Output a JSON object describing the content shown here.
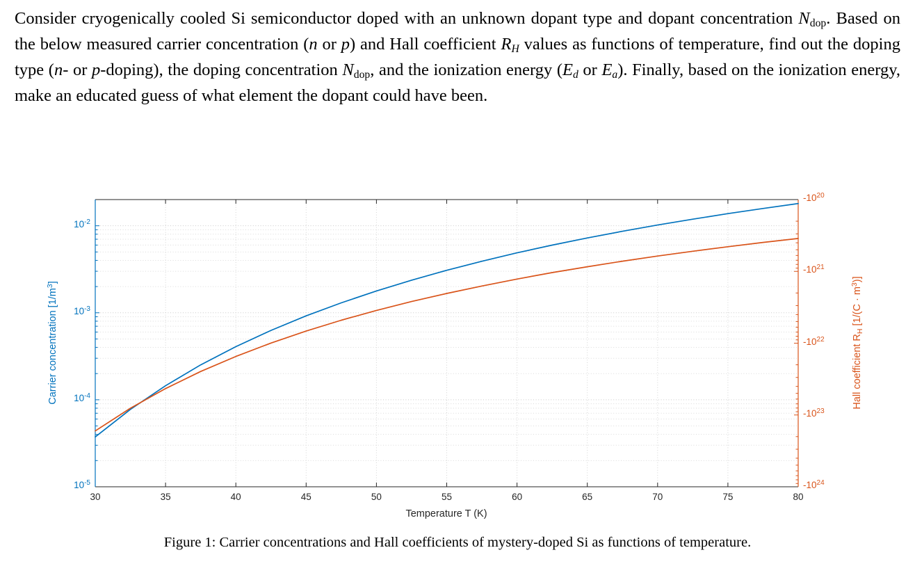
{
  "problem": {
    "segments": [
      {
        "t": "Consider cryogenically cooled Si semiconductor doped with an unknown dopant type and dopant concentration "
      },
      {
        "t": "N",
        "i": true,
        "sub": "dop"
      },
      {
        "t": ". Based on the below measured carrier concentration ("
      },
      {
        "t": "n",
        "i": true
      },
      {
        "t": " or "
      },
      {
        "t": "p",
        "i": true
      },
      {
        "t": ") and Hall coefficient "
      },
      {
        "t": "R",
        "i": true,
        "sub": "H",
        "subi": true
      },
      {
        "t": " values as functions of temperature, find out the doping type ("
      },
      {
        "t": "n",
        "i": true
      },
      {
        "t": "- or "
      },
      {
        "t": "p",
        "i": true
      },
      {
        "t": "-doping), the doping concentration "
      },
      {
        "t": "N",
        "i": true,
        "sub": "dop"
      },
      {
        "t": ", and the ionization energy ("
      },
      {
        "t": "E",
        "i": true,
        "sub": "d",
        "subi": true
      },
      {
        "t": " or "
      },
      {
        "t": "E",
        "i": true,
        "sub": "a",
        "subi": true
      },
      {
        "t": "). Finally, based on the ionization energy, make an educated guess of what element the dopant could have been."
      }
    ]
  },
  "figure": {
    "caption": "Figure 1: Carrier concentrations and Hall coefficients of mystery-doped Si as functions of temperature."
  },
  "chart_data": {
    "type": "line",
    "xlabel": "Temperature T (K)",
    "x_range": [
      30,
      80
    ],
    "x_ticks": [
      30,
      35,
      40,
      45,
      50,
      55,
      60,
      65,
      70,
      75,
      80
    ],
    "grid": "on",
    "left_axis": {
      "label_segments": [
        {
          "t": "Carrier concentration [1/m",
          "sup": "3"
        },
        {
          "t": "]"
        }
      ],
      "scale": "log",
      "range": [
        1e-05,
        0.02
      ],
      "color": "#0072BD",
      "ticks": [
        {
          "base": "10",
          "exp": "-2",
          "value": 0.01
        },
        {
          "base": "10",
          "exp": "-3",
          "value": 0.001
        },
        {
          "base": "10",
          "exp": "-4",
          "value": 0.0001
        },
        {
          "base": "10",
          "exp": "-5",
          "value": 1e-05
        }
      ]
    },
    "right_axis": {
      "label_segments": [
        {
          "t": "Hall coefficient R",
          "sub": "H"
        },
        {
          "t": " [1/(C · m",
          "sup": "3"
        },
        {
          "t": ")]"
        }
      ],
      "scale": "log-negative",
      "range_magnitude": [
        1e+20,
        1e+24
      ],
      "color": "#D95319",
      "ticks": [
        {
          "base": "-10",
          "exp": "20",
          "value": -1e+20
        },
        {
          "base": "-10",
          "exp": "21",
          "value": -1e+21
        },
        {
          "base": "-10",
          "exp": "22",
          "value": -1e+22
        },
        {
          "base": "-10",
          "exp": "23",
          "value": -1e+23
        },
        {
          "base": "-10",
          "exp": "24",
          "value": -1e+24
        }
      ]
    },
    "series": [
      {
        "name": "carrier-concentration",
        "axis": "left",
        "color": "#0072BD",
        "x": [
          30,
          32.5,
          35,
          37.5,
          40,
          42.5,
          45,
          47.5,
          50,
          52.5,
          55,
          57.5,
          60,
          62.5,
          65,
          67.5,
          70,
          72.5,
          75,
          77.5,
          80
        ],
        "y": [
          3.74e-05,
          7.75e-05,
          0.000145,
          0.000252,
          0.000408,
          0.000628,
          0.000921,
          0.0013,
          0.00178,
          0.00237,
          0.00308,
          0.00391,
          0.00488,
          0.00599,
          0.00724,
          0.00864,
          0.0102,
          0.0119,
          0.0138,
          0.0158,
          0.018
        ]
      },
      {
        "name": "hall-coefficient",
        "axis": "right",
        "color": "#D95319",
        "x": [
          30,
          32.5,
          35,
          37.5,
          40,
          42.5,
          45,
          47.5,
          50,
          52.5,
          55,
          57.5,
          60,
          62.5,
          65,
          67.5,
          70,
          72.5,
          75,
          77.5,
          80
        ],
        "y": [
          -1.67e+23,
          -8.05e+22,
          -4.29e+22,
          -2.48e+22,
          -1.53e+22,
          -9.95e+21,
          -6.78e+21,
          -4.79e+21,
          -3.5e+21,
          -2.63e+21,
          -2.03e+21,
          -1.6e+21,
          -1.28e+21,
          -1.04e+21,
          -8.62e+20,
          -7.22e+20,
          -6.12e+20,
          -5.24e+20,
          -4.54e+20,
          -3.95e+20,
          -3.48e+20
        ]
      }
    ]
  }
}
